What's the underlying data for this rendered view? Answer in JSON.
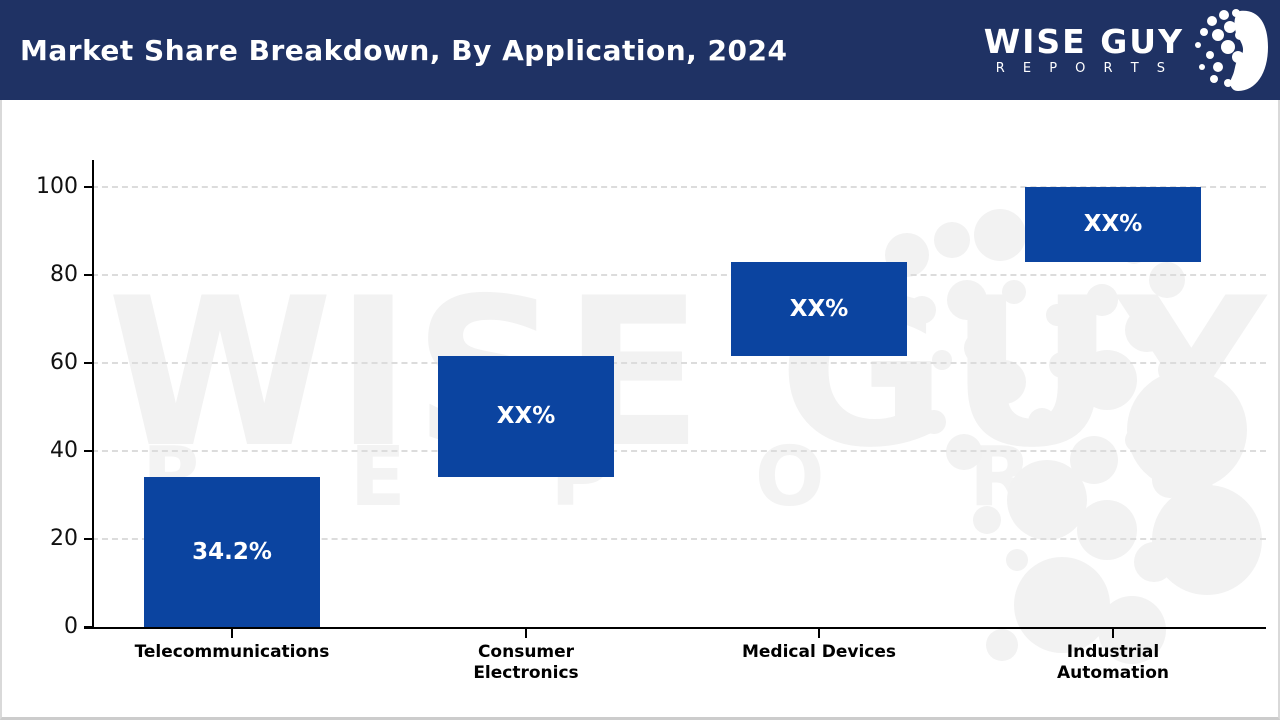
{
  "header": {
    "title": "Market Share Breakdown, By Application, 2024",
    "bg_color": "#1f3264",
    "logo": {
      "line1": "WISE GUY",
      "line2": "R E P O R T S"
    }
  },
  "watermark": {
    "line1": "WISE GUY",
    "line2": "R E P O R T S"
  },
  "chart_data": {
    "type": "bar",
    "subtype": "floating-waterfall",
    "title": "Market Share Breakdown, By Application, 2024",
    "categories": [
      "Telecommunications",
      "Consumer\nElectronics",
      "Medical Devices",
      "Industrial\nAutomation"
    ],
    "series": [
      {
        "name": "Market Share",
        "segments": [
          {
            "category": "Telecommunications",
            "start": 0,
            "end": 34.2,
            "value": 34.2,
            "label": "34.2%"
          },
          {
            "category": "Consumer Electronics",
            "start": 34.2,
            "end": 61.5,
            "value": 27.3,
            "label": "XX%"
          },
          {
            "category": "Medical Devices",
            "start": 61.5,
            "end": 83,
            "value": 21.5,
            "label": "XX%"
          },
          {
            "category": "Industrial Automation",
            "start": 83,
            "end": 100,
            "value": 17,
            "label": "XX%"
          }
        ]
      }
    ],
    "ylim": [
      0,
      100
    ],
    "yticks": [
      0,
      20,
      40,
      60,
      80,
      100
    ],
    "xlabel": "",
    "ylabel": "",
    "grid": "horizontal-dashed",
    "legend": "none",
    "bar_color": "#0b44a0",
    "bar_label_color": "#ffffff",
    "axis_color": "#000000",
    "gridline_color": "#dcdcdc"
  }
}
